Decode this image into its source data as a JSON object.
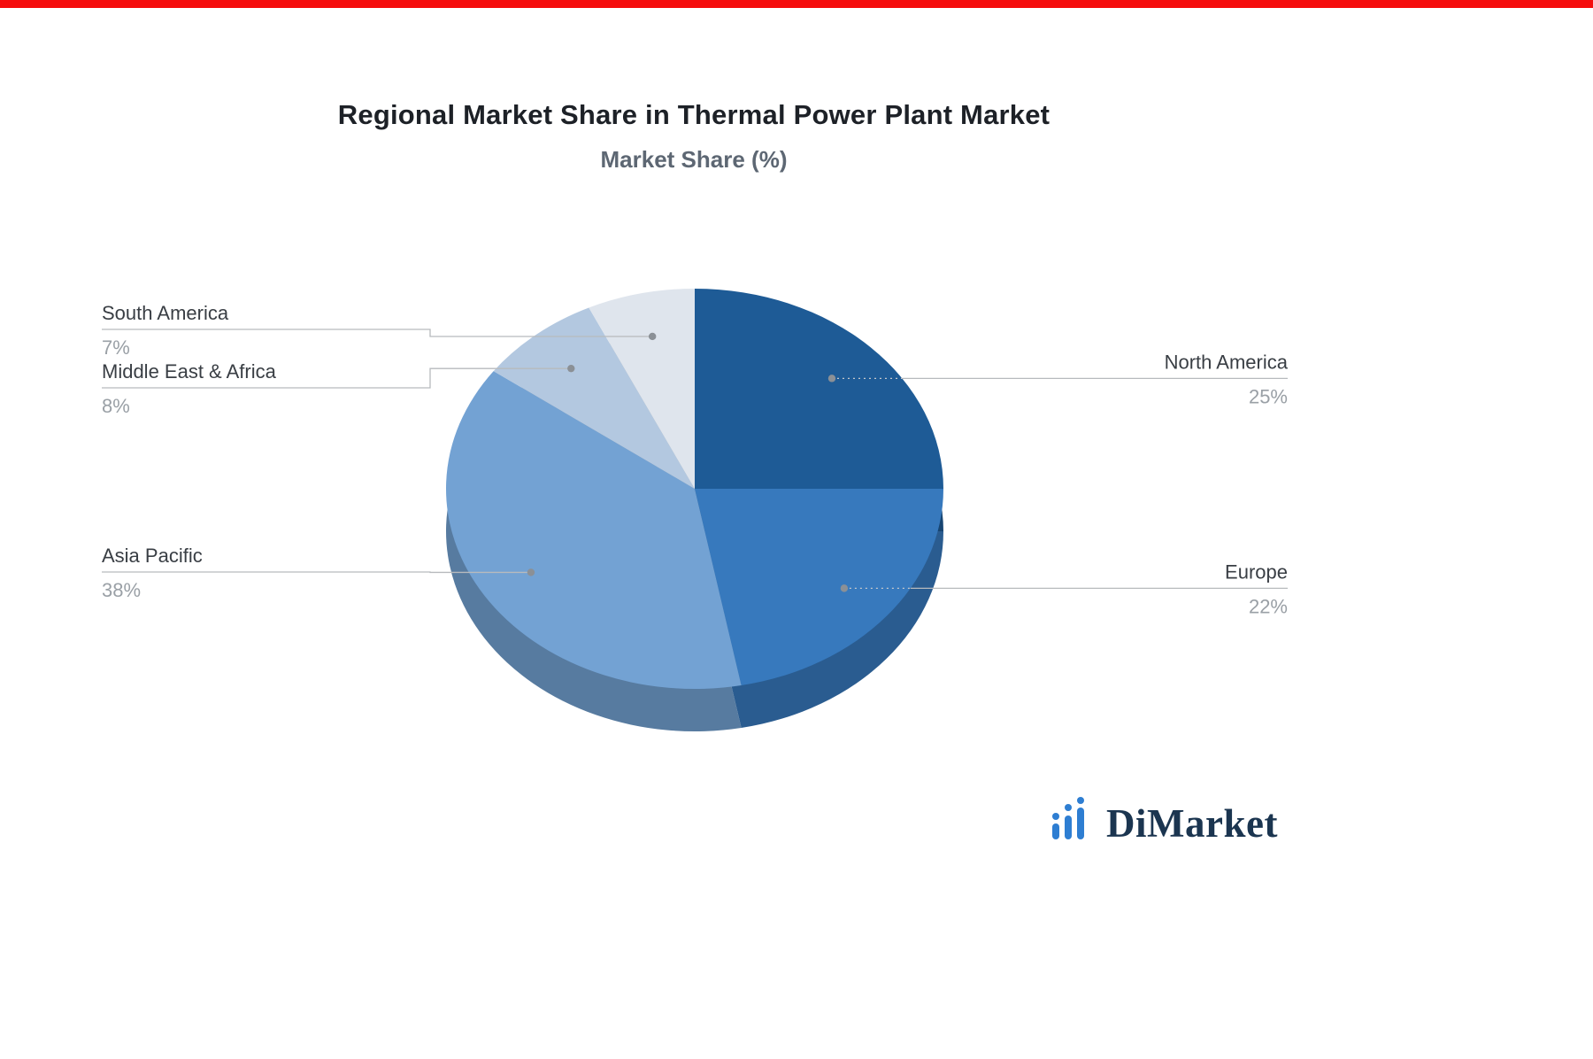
{
  "page": {
    "background": "#ffffff",
    "accent_bar_color": "#f50d0d"
  },
  "header": {
    "title": "Regional Market Share in Thermal Power Plant Market",
    "subtitle": "Market Share (%)"
  },
  "chart_data": {
    "type": "pie",
    "title": "Regional Market Share in Thermal Power Plant Market",
    "subtitle": "Market Share (%)",
    "unit": "%",
    "effect": "3d",
    "start_angle_deg": 0,
    "direction": "clockwise",
    "legend": "none",
    "label_style": {
      "name_color": "#393e44",
      "value_color": "#9aa0a6",
      "leader_line_color": "#b7babd",
      "dot_color": "#8b9096"
    },
    "slices": [
      {
        "label": "North America",
        "value": 25,
        "display_value": "25%",
        "color": "#1e5b96",
        "label_side": "right"
      },
      {
        "label": "Europe",
        "value": 22,
        "display_value": "22%",
        "color": "#3779bd",
        "label_side": "right"
      },
      {
        "label": "Asia Pacific",
        "value": 38,
        "display_value": "38%",
        "color": "#73a2d3",
        "label_side": "left"
      },
      {
        "label": "Middle East & Africa",
        "value": 8,
        "display_value": "8%",
        "color": "#b3c8e0",
        "label_side": "left"
      },
      {
        "label": "South America",
        "value": 7,
        "display_value": "7%",
        "color": "#dfe5ed",
        "label_side": "left"
      }
    ]
  },
  "brand": {
    "name": "DiMarket",
    "icon": "bar-chart-logo-icon",
    "text_color": "#1b3550",
    "icon_color": "#2e7ed2"
  }
}
